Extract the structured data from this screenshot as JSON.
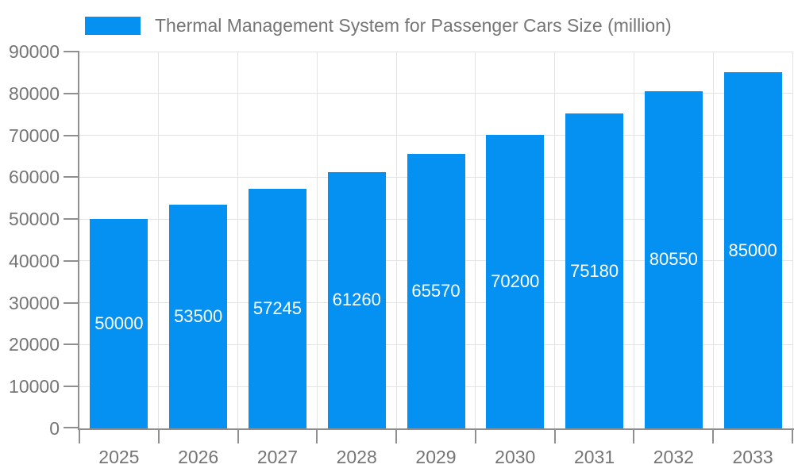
{
  "chart_data": {
    "type": "bar",
    "title": "Thermal Management System for Passenger Cars Size (million)",
    "categories": [
      "2025",
      "2026",
      "2027",
      "2028",
      "2029",
      "2030",
      "2031",
      "2032",
      "2033"
    ],
    "values": [
      50000,
      53500,
      57245,
      61260,
      65570,
      70200,
      75180,
      80550,
      85000
    ],
    "xlabel": "",
    "ylabel": "",
    "ylim": [
      0,
      90000
    ],
    "yticks": [
      0,
      10000,
      20000,
      30000,
      40000,
      50000,
      60000,
      70000,
      80000,
      90000
    ],
    "grid": true,
    "legend_position": "top-left",
    "bar_label_position": "inside-center",
    "colors": {
      "bar": "#0591f2",
      "bar_label": "#ffffff",
      "title": "#757575",
      "axis_label": "#757575",
      "axis_line": "#8f8f8f",
      "gridline": "#e3e3e3",
      "background": "#ffffff"
    }
  }
}
